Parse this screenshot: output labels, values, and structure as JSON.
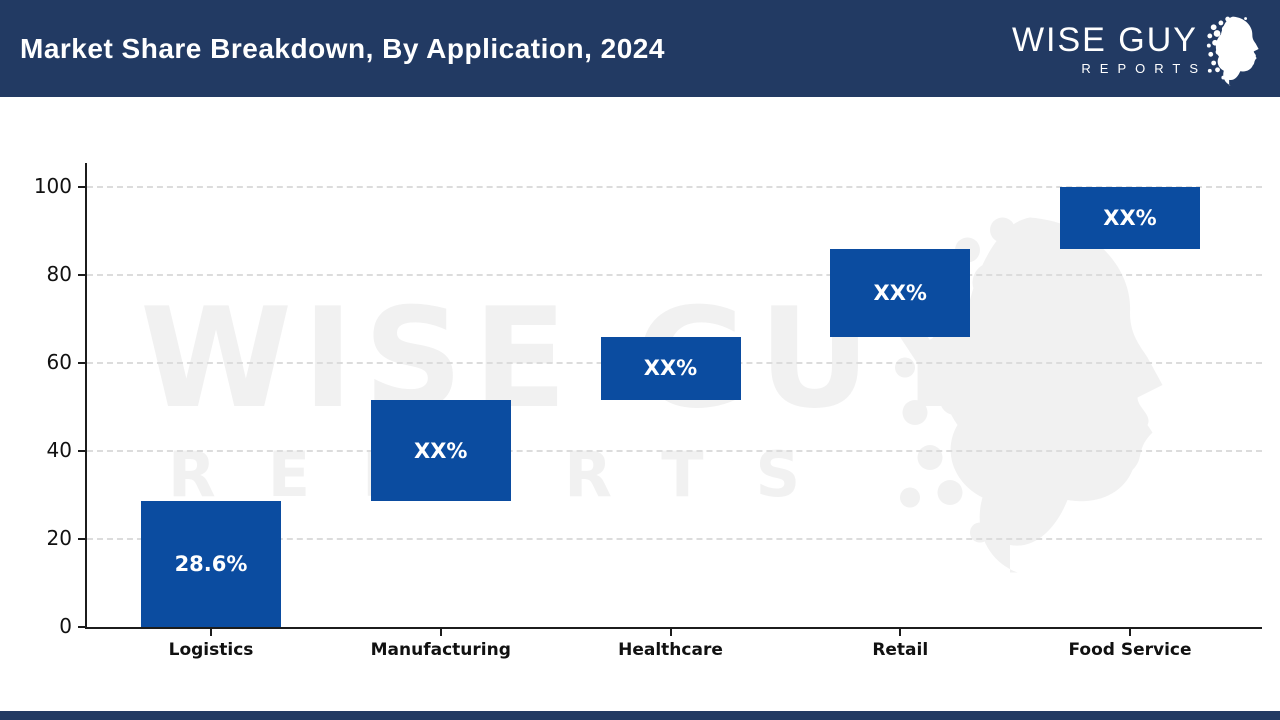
{
  "header": {
    "logo": {
      "line1": "WISE GUY",
      "line2": "REPORTS"
    }
  },
  "watermark": {
    "line1": "WISE GUY",
    "line2": "REPORTS"
  },
  "colors": {
    "header_bg": "#223a63",
    "footer_bg": "#223a63",
    "bar": "#0b4ca0",
    "bar_label": "#ffffff",
    "grid": "#dcdcdc",
    "axis": "#1c1c1c",
    "watermark": "#f1f1f1",
    "title_text": "#ffffff"
  },
  "chart_data": {
    "type": "bar",
    "subtype": "waterfall",
    "title": "Market Share Breakdown, By Application, 2024",
    "categories": [
      "Logistics",
      "Manufacturing",
      "Healthcare",
      "Retail",
      "Food Service"
    ],
    "segments": [
      {
        "category": "Logistics",
        "start": 0,
        "end": 28.6,
        "label": "28.6%"
      },
      {
        "category": "Manufacturing",
        "start": 28.6,
        "end": 51.5,
        "label": "XX%"
      },
      {
        "category": "Healthcare",
        "start": 51.5,
        "end": 66.0,
        "label": "XX%"
      },
      {
        "category": "Retail",
        "start": 66.0,
        "end": 86.0,
        "label": "XX%"
      },
      {
        "category": "Food Service",
        "start": 86.0,
        "end": 100.0,
        "label": "XX%"
      }
    ],
    "xlabel": "",
    "ylabel": "",
    "ylim": [
      0,
      100
    ],
    "yticks": [
      0,
      20,
      40,
      60,
      80,
      100
    ],
    "grid": "horizontal-dashed",
    "legend": "none"
  }
}
